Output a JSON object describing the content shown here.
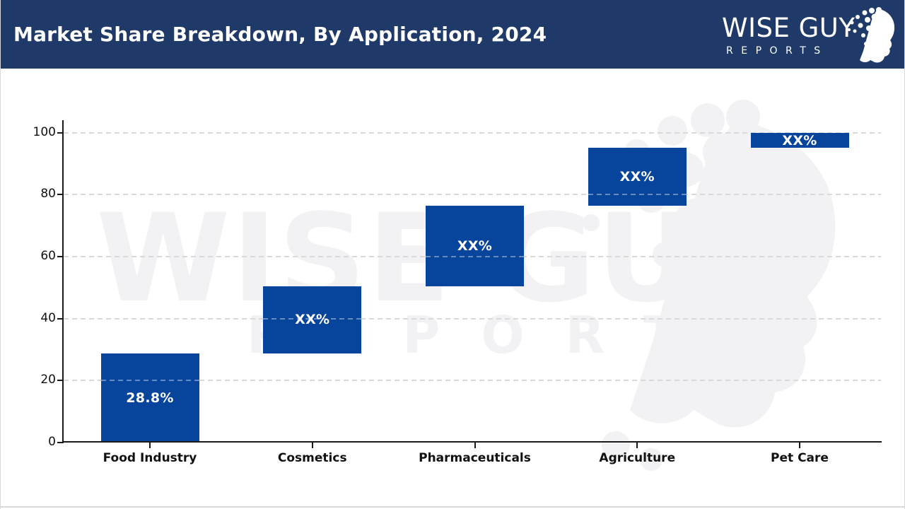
{
  "header": {
    "title": "Market Share Breakdown, By Application, 2024",
    "background": "#1f3a68",
    "logo": {
      "line1": "WISE GUY",
      "line2": "REPORTS"
    }
  },
  "watermark": {
    "line1": "WISE GUY",
    "line2": "REPORTS"
  },
  "chart_data": {
    "type": "bar",
    "variant": "waterfall",
    "title": "Market Share Breakdown, By Application, 2024",
    "categories": [
      "Food Industry",
      "Cosmetics",
      "Pharmaceuticals",
      "Agriculture",
      "Pet Care"
    ],
    "bars": [
      {
        "category": "Food Industry",
        "start": 0,
        "end": 28.8,
        "label": "28.8%"
      },
      {
        "category": "Cosmetics",
        "start": 28.8,
        "end": 50.5,
        "label": "XX%"
      },
      {
        "category": "Pharmaceuticals",
        "start": 50.5,
        "end": 76.5,
        "label": "XX%"
      },
      {
        "category": "Agriculture",
        "start": 76.5,
        "end": 95.0,
        "label": "XX%"
      },
      {
        "category": "Pet Care",
        "start": 95.0,
        "end": 100.0,
        "label": "XX%"
      }
    ],
    "xlabel": "",
    "ylabel": "",
    "ylim": [
      0,
      104
    ],
    "yticks": [
      0,
      20,
      40,
      60,
      80,
      100
    ],
    "grid": {
      "horizontal": true,
      "style": "dashed",
      "color": "#d9d9d9"
    },
    "bar_color": "#07449b",
    "bar_label_color": "#ffffff",
    "axis_color": "#1a1a1a"
  }
}
